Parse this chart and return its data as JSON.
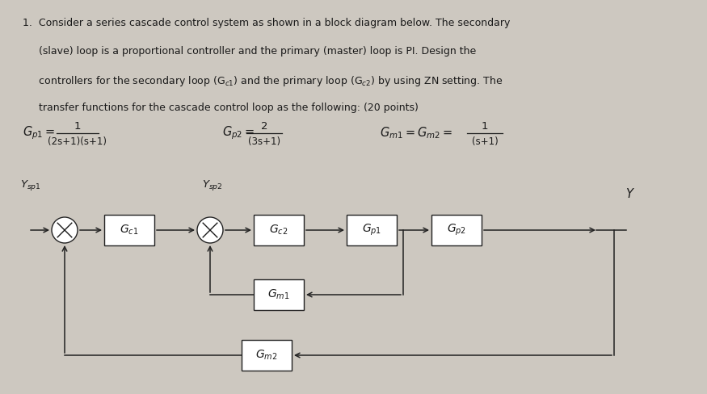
{
  "bg_color": "#cdc8c0",
  "text_color": "#1a1a1a",
  "box_color": "#ffffff",
  "box_edge_color": "#222222",
  "circle_color": "#ffffff",
  "arrow_color": "#222222",
  "question_lines": [
    "1.  Consider a series cascade control system as shown in a block diagram below. The secondary",
    "     (slave) loop is a proportional controller and the primary (master) loop is PI. Design the",
    "     controllers for the secondary loop (G$_{c1}$) and the primary loop (G$_{c2}$) by using ZN setting. The",
    "     transfer functions for the cascade control loop as the following: (20 points)"
  ],
  "eq_gp1_label": "$G_{p1}=$",
  "eq_gp1_num": "1",
  "eq_gp1_den": "(2s+1)(s+1)",
  "eq_gp2_label": "$G_{p2}=$",
  "eq_gp2_num": "2",
  "eq_gp2_den": "(3s+1)",
  "eq_gm_label": "$G_{m1}=G_{m2}=$",
  "eq_gm_num": "1",
  "eq_gm_den": "(s+1)",
  "ysp1": "$Y_{sp1}$",
  "ysp2": "$Y_{sp2}$",
  "ylabel": "$Y$",
  "block_labels": [
    "$G_{c1}$",
    "$G_{c2}$",
    "$G_{p1}$",
    "$G_{p2}$",
    "$G_{m1}$",
    "$G_{m2}$"
  ]
}
